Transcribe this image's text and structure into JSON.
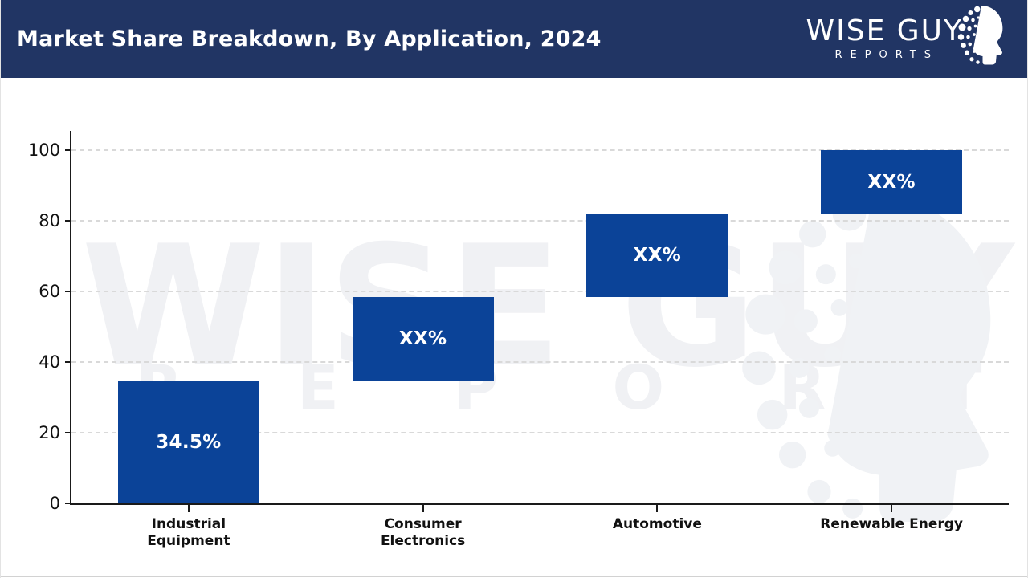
{
  "header": {
    "title": "Market Share Breakdown, By Application, 2024",
    "logo": {
      "brand": "WISE GUY",
      "sub": "REPORTS"
    }
  },
  "watermark": {
    "brand": "WISE GUY",
    "sub": "R E P O R T S"
  },
  "colors": {
    "header_bg": "#213564",
    "bar": "#0b4398",
    "grid": "#d9d9d9",
    "axis": "#1a1a1a",
    "bar_label": "#ffffff",
    "watermark": "#f0f1f4"
  },
  "chart_data": {
    "type": "bar",
    "subtype": "waterfall",
    "title": "Market Share Breakdown, By Application, 2024",
    "xlabel": "",
    "ylabel": "",
    "ylim": [
      0,
      105
    ],
    "yticks": [
      0,
      20,
      40,
      60,
      80,
      100
    ],
    "grid": "horizontal-dashed",
    "categories": [
      "Industrial Equipment",
      "Consumer Electronics",
      "Automotive",
      "Renewable Energy"
    ],
    "category_label_lines": [
      [
        "Industrial",
        "Equipment"
      ],
      [
        "Consumer",
        "Electronics"
      ],
      [
        "Automotive"
      ],
      [
        "Renewable Energy"
      ]
    ],
    "series": [
      {
        "name": "Market Share",
        "segments": [
          {
            "category": "Industrial Equipment",
            "start": 0,
            "end": 34.5,
            "label": "34.5%"
          },
          {
            "category": "Consumer Electronics",
            "start": 34.5,
            "end": 58.5,
            "label": "XX%"
          },
          {
            "category": "Automotive",
            "start": 58.5,
            "end": 82,
            "label": "XX%"
          },
          {
            "category": "Renewable Energy",
            "start": 82,
            "end": 100,
            "label": "XX%"
          }
        ]
      }
    ]
  }
}
